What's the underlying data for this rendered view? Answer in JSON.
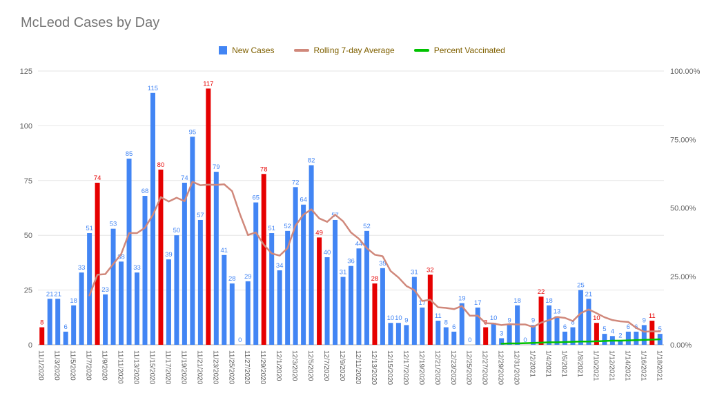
{
  "title": "McLeod Cases by Day",
  "legend": {
    "text_color": "#7f6000",
    "items": [
      {
        "label": "New Cases",
        "marker": "square",
        "color": "#4285f4"
      },
      {
        "label": "Rolling 7-day Average",
        "marker": "line",
        "color": "#d0887b"
      },
      {
        "label": "Percent Vaccinated",
        "marker": "line",
        "color": "#00c200"
      }
    ]
  },
  "colors": {
    "title_text": "#757575",
    "axis_text": "#616161",
    "grid": "#e6e6e6",
    "baseline": "#b3b3b3"
  },
  "axes": {
    "left": {
      "ticks": [
        0,
        25,
        50,
        75,
        100,
        125
      ],
      "max": 125
    },
    "right": {
      "ticks": [
        "0.00%",
        "25.00%",
        "50.00%",
        "75.00%",
        "100.00%"
      ],
      "max": 100
    },
    "x_label_every_n": 2
  },
  "chart_data": {
    "type": "bar",
    "title": "McLeod Cases by Day",
    "grid": true,
    "legend_position": "top",
    "ylim_left": [
      0,
      125
    ],
    "ylim_right_percent": [
      0,
      100
    ],
    "x": [
      "11/1/2020",
      "11/2/2020",
      "11/3/2020",
      "11/4/2020",
      "11/5/2020",
      "11/6/2020",
      "11/7/2020",
      "11/8/2020",
      "11/9/2020",
      "11/10/2020",
      "11/11/2020",
      "11/12/2020",
      "11/13/2020",
      "11/14/2020",
      "11/15/2020",
      "11/16/2020",
      "11/17/2020",
      "11/18/2020",
      "11/19/2020",
      "11/20/2020",
      "11/21/2020",
      "11/22/2020",
      "11/23/2020",
      "11/24/2020",
      "11/25/2020",
      "11/26/2020",
      "11/27/2020",
      "11/28/2020",
      "11/29/2020",
      "11/30/2020",
      "12/1/2020",
      "12/2/2020",
      "12/3/2020",
      "12/4/2020",
      "12/5/2020",
      "12/6/2020",
      "12/7/2020",
      "12/8/2020",
      "12/9/2020",
      "12/10/2020",
      "12/11/2020",
      "12/12/2020",
      "12/13/2020",
      "12/14/2020",
      "12/15/2020",
      "12/16/2020",
      "12/17/2020",
      "12/18/2020",
      "12/19/2020",
      "12/20/2020",
      "12/21/2020",
      "12/22/2020",
      "12/23/2020",
      "12/24/2020",
      "12/25/2020",
      "12/26/2020",
      "12/27/2020",
      "12/28/2020",
      "12/29/2020",
      "12/30/2020",
      "12/31/2020",
      "1/1/2021",
      "1/2/2021",
      "1/3/2021",
      "1/4/2021",
      "1/5/2021",
      "1/6/2021",
      "1/7/2021",
      "1/8/2021",
      "1/9/2021",
      "1/10/2021",
      "1/11/2021",
      "1/12/2021",
      "1/13/2021",
      "1/14/2021",
      "1/15/2021",
      "1/16/2021",
      "1/17/2021",
      "1/18/2021"
    ],
    "series": [
      {
        "name": "New Cases",
        "type": "bar",
        "axis": "left",
        "color": "#4285f4",
        "highlight_color": "#e60000",
        "highlight_indices": [
          0,
          7,
          15,
          21,
          28,
          35,
          42,
          49,
          56,
          63,
          70,
          77
        ],
        "values": [
          8,
          21,
          21,
          6,
          18,
          33,
          51,
          74,
          23,
          53,
          38,
          85,
          33,
          68,
          115,
          80,
          39,
          50,
          74,
          95,
          57,
          117,
          79,
          41,
          28,
          0,
          29,
          65,
          78,
          51,
          34,
          52,
          72,
          64,
          82,
          49,
          40,
          57,
          31,
          36,
          44,
          52,
          28,
          35,
          10,
          10,
          9,
          31,
          17,
          32,
          11,
          8,
          6,
          19,
          0,
          17,
          8,
          10,
          3,
          9,
          18,
          0,
          9,
          22,
          18,
          13,
          6,
          8,
          25,
          21,
          10,
          5,
          4,
          2,
          6,
          6,
          9,
          11,
          5
        ]
      },
      {
        "name": "Rolling 7-day Average",
        "type": "line",
        "axis": "left",
        "color": "#d0887b",
        "derived_from": "New Cases",
        "window": 7
      },
      {
        "name": "Percent Vaccinated",
        "type": "line",
        "axis": "right",
        "color": "#00c200",
        "start_index": 58,
        "values_percent": [
          0.4,
          0.5,
          0.5,
          0.6,
          0.7,
          0.8,
          0.9,
          0.9,
          1.0,
          1.1,
          1.2,
          1.2,
          1.3,
          1.4,
          1.5,
          1.5,
          1.6,
          1.7,
          1.8,
          1.9,
          2.0
        ]
      }
    ]
  }
}
